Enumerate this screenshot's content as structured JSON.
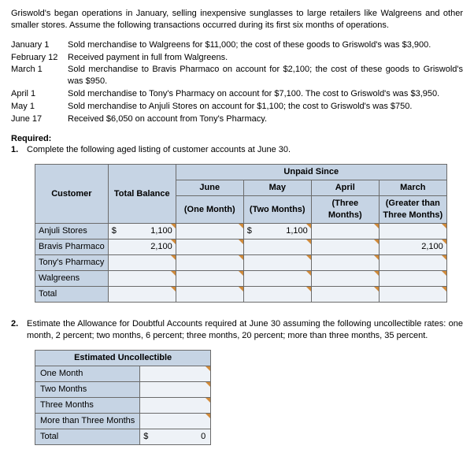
{
  "intro": "Griswold's began operations in January, selling inexpensive sunglasses to large retailers like Walgreens and other smaller stores. Assume the following transactions occurred during its first six months of operations.",
  "transactions": [
    {
      "date": "January 1",
      "desc": "Sold merchandise to Walgreens for $11,000; the cost of these goods to Griswold's was $3,900."
    },
    {
      "date": "February 12",
      "desc": "Received payment in full from Walgreens."
    },
    {
      "date": "March 1",
      "desc": "Sold merchandise to Bravis Pharmaco on account for $2,100; the cost of these goods to Griswold's was $950."
    },
    {
      "date": "April 1",
      "desc": "Sold merchandise to Tony's Pharmacy on account for $7,100. The cost to Griswold's was $3,950."
    },
    {
      "date": "May 1",
      "desc": "Sold merchandise to Anjuli Stores on account for $1,100; the cost to Griswold's was $750."
    },
    {
      "date": "June 17",
      "desc": "Received $6,050 on account from Tony's Pharmacy."
    }
  ],
  "required_label": "Required:",
  "req1": {
    "num": "1.",
    "text": "Complete the following aged listing of customer accounts at June 30."
  },
  "req2": {
    "num": "2.",
    "text": "Estimate the Allowance for Doubtful Accounts required at June 30 assuming the following uncollectible rates: one month, 2 percent; two months, 6 percent; three months, 20 percent; more than three months, 35 percent."
  },
  "table1": {
    "spanhead": "Unpaid Since",
    "headers": {
      "customer": "Customer",
      "total": "Total Balance",
      "june": "June",
      "june_sub": "(One Month)",
      "may": "May",
      "may_sub": "(Two Months)",
      "april": "April",
      "april_sub": "(Three Months)",
      "march": "March",
      "march_sub": "(Greater than Three Months)"
    },
    "rows": [
      {
        "label": "Anjuli Stores",
        "total_sym": "$",
        "total": "1,100",
        "may_sym": "$",
        "may": "1,100"
      },
      {
        "label": "Bravis Pharmaco",
        "total": "2,100",
        "march": "2,100"
      },
      {
        "label": "Tony's Pharmacy"
      },
      {
        "label": "Walgreens"
      },
      {
        "label": "Total"
      }
    ]
  },
  "table2": {
    "header": "Estimated Uncollectible",
    "rows": [
      {
        "label": "One Month"
      },
      {
        "label": "Two Months"
      },
      {
        "label": "Three Months"
      },
      {
        "label": "More than Three Months"
      },
      {
        "label": "Total",
        "sym": "$",
        "val": "0"
      }
    ]
  },
  "colors": {
    "header_bg": "#c6d4e4",
    "data_bg": "#eef2f7",
    "border": "#6b6b6b",
    "corner": "#d08a3a"
  }
}
